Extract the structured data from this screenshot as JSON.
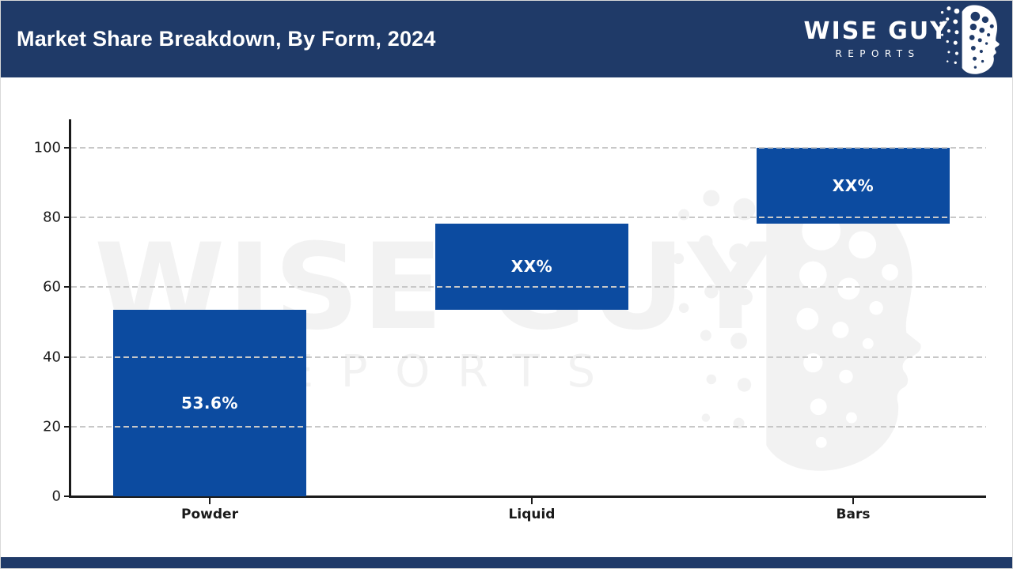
{
  "header": {
    "title": "Market Share Breakdown, By Form, 2024",
    "logo": {
      "name": "WISE GUY",
      "sub": "REPORTS"
    }
  },
  "watermark": {
    "text_main": "WISE GUY",
    "text_sub": "REPORTS"
  },
  "chart_data": {
    "type": "bar",
    "variant": "waterfall",
    "title": "Market Share Breakdown, By Form, 2024",
    "categories": [
      "Powder",
      "Liquid",
      "Bars"
    ],
    "segments": [
      {
        "category": "Powder",
        "start": 0,
        "end": 53.6,
        "label": "53.6%"
      },
      {
        "category": "Liquid",
        "start": 53.6,
        "end": 78.2,
        "label": "XX%"
      },
      {
        "category": "Bars",
        "start": 78.2,
        "end": 100,
        "label": "XX%"
      }
    ],
    "xlabel": "",
    "ylabel": "",
    "ylim": [
      0,
      100
    ],
    "yticks": [
      0,
      20,
      40,
      60,
      80,
      100
    ],
    "grid": {
      "axis": "y",
      "style": "dashed",
      "color": "#c8c8c8",
      "on_top_of_bars": true
    },
    "legend": "none",
    "bar_color": "#0C4BA0",
    "bar_label_color": "#ffffff"
  },
  "colors": {
    "header_bg": "#1F3A68",
    "footer_bg": "#1F3A68",
    "bar": "#0C4BA0",
    "axis_text": "#1a1a1a",
    "grid": "#c8c8c8",
    "watermark": "#f2f2f2",
    "canvas_border": "#d9d9d9"
  }
}
